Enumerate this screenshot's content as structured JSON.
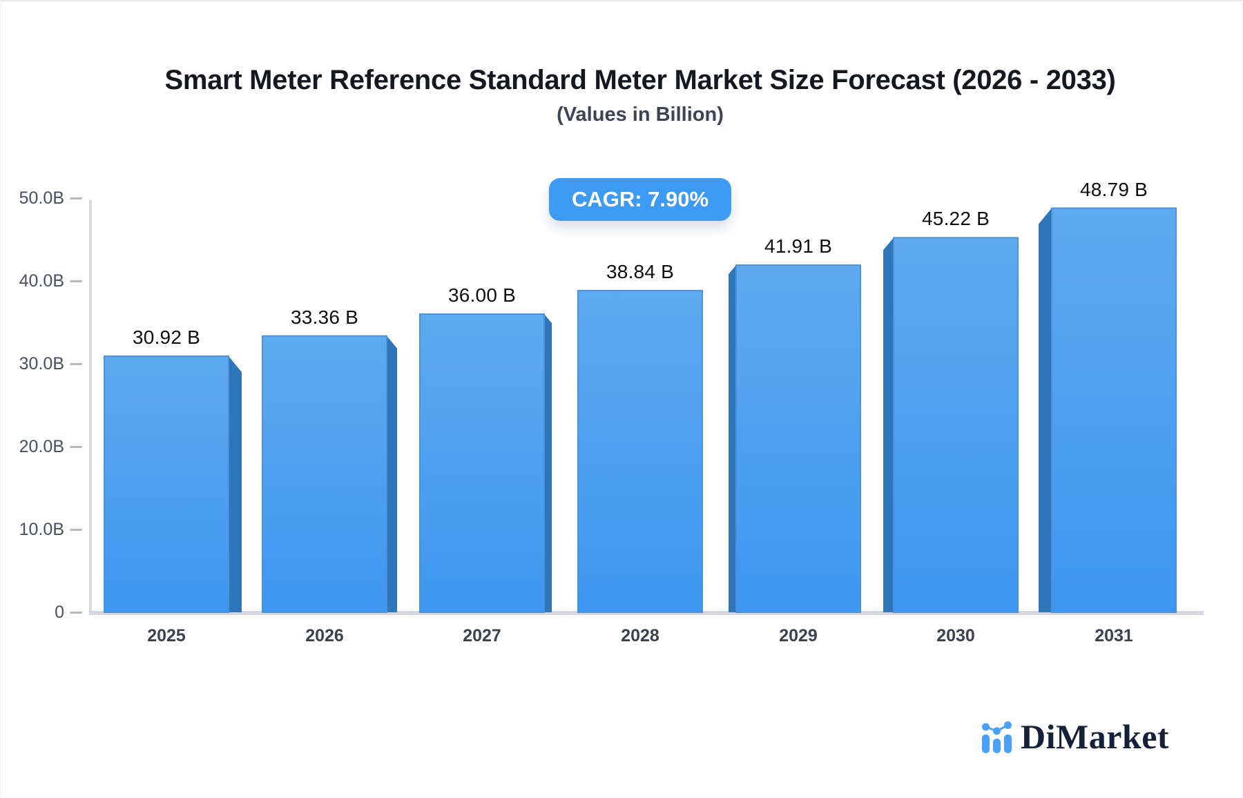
{
  "header": {
    "title": "Smart Meter Reference Standard Meter Market Size Forecast (2026 - 2033)",
    "subtitle": "(Values in Billion)"
  },
  "chart_data": {
    "type": "bar",
    "title": "Smart Meter Reference Standard Meter Market Size Forecast (2026 - 2033)",
    "subtitle": "(Values in Billion)",
    "categories": [
      "2025",
      "2026",
      "2027",
      "2028",
      "2029",
      "2030",
      "2031"
    ],
    "values": [
      30.92,
      33.36,
      36.0,
      38.84,
      41.91,
      45.22,
      48.79
    ],
    "value_labels": [
      "30.92 B",
      "33.36 B",
      "36.00 B",
      "38.84 B",
      "41.91 B",
      "45.22 B",
      "48.79 B"
    ],
    "annotations": [
      {
        "label": "CAGR: 7.90%"
      }
    ],
    "xlabel": "",
    "ylabel": "",
    "ylim": [
      0,
      50
    ],
    "yticks": [
      {
        "value": 50,
        "label": "50.0B"
      },
      {
        "value": 40,
        "label": "40.0B"
      },
      {
        "value": 30,
        "label": "30.0B"
      },
      {
        "value": 20,
        "label": "20.0B"
      },
      {
        "value": 10,
        "label": "10.0B"
      },
      {
        "value": 0,
        "label": "0"
      }
    ],
    "grid": false,
    "legend_position": "none",
    "colors": {
      "bar_face_top": "#5FA9EF",
      "bar_face_bottom": "#3D97F0",
      "bar_side": "#2E76B9",
      "bar_edge": "#4C92DB",
      "badge_bg": "#3E9BF3",
      "axis_line": "#d7dade",
      "tick_dash": "#b3b8bf"
    }
  },
  "logo": {
    "brand": "DiMarket",
    "icon": "bar-chart-logo-icon",
    "icon_color": "#49A0F6",
    "text_color": "#142138"
  }
}
